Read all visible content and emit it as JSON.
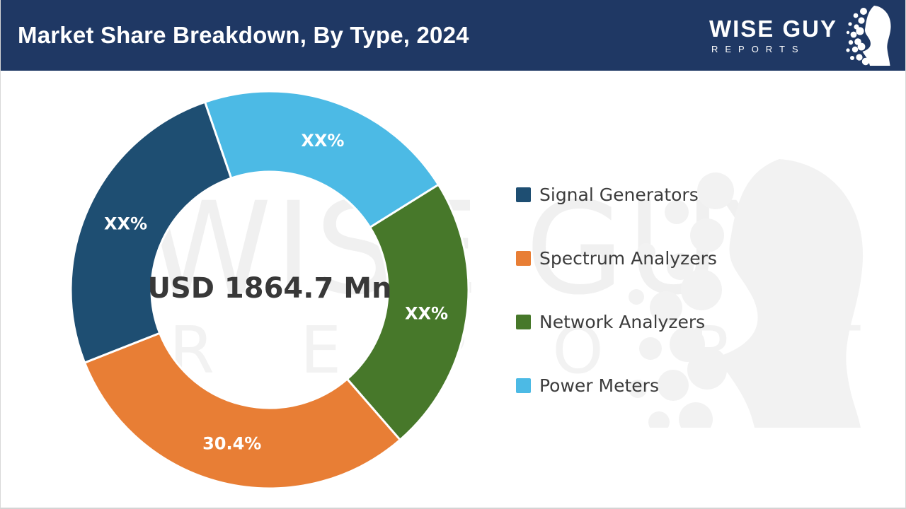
{
  "header": {
    "title": "Market Share Breakdown, By Type, 2024",
    "bg_color": "#1F3864",
    "logo": {
      "line1": "WISE GUY",
      "line2": "REPORTS"
    }
  },
  "watermark": {
    "line1": "WISE GUY",
    "line2": "R E P O R T S"
  },
  "chart_data": {
    "type": "pie",
    "donut": true,
    "title": "Market Share Breakdown, By Type, 2024",
    "center_label": "USD 1864.7 Mn",
    "legend_position": "right",
    "start_angle_deg": 341,
    "slices": [
      {
        "label": "Signal Generators",
        "value_pct": 25.7,
        "display": "XX%",
        "color": "#1E4E72"
      },
      {
        "label": "Spectrum Analyzers",
        "value_pct": 30.4,
        "display": "30.4%",
        "color": "#E87E35"
      },
      {
        "label": "Network Analyzers",
        "value_pct": 22.5,
        "display": "XX%",
        "color": "#47782A"
      },
      {
        "label": "Power Meters",
        "value_pct": 21.4,
        "display": "XX%",
        "color": "#4CBAE5"
      }
    ]
  }
}
